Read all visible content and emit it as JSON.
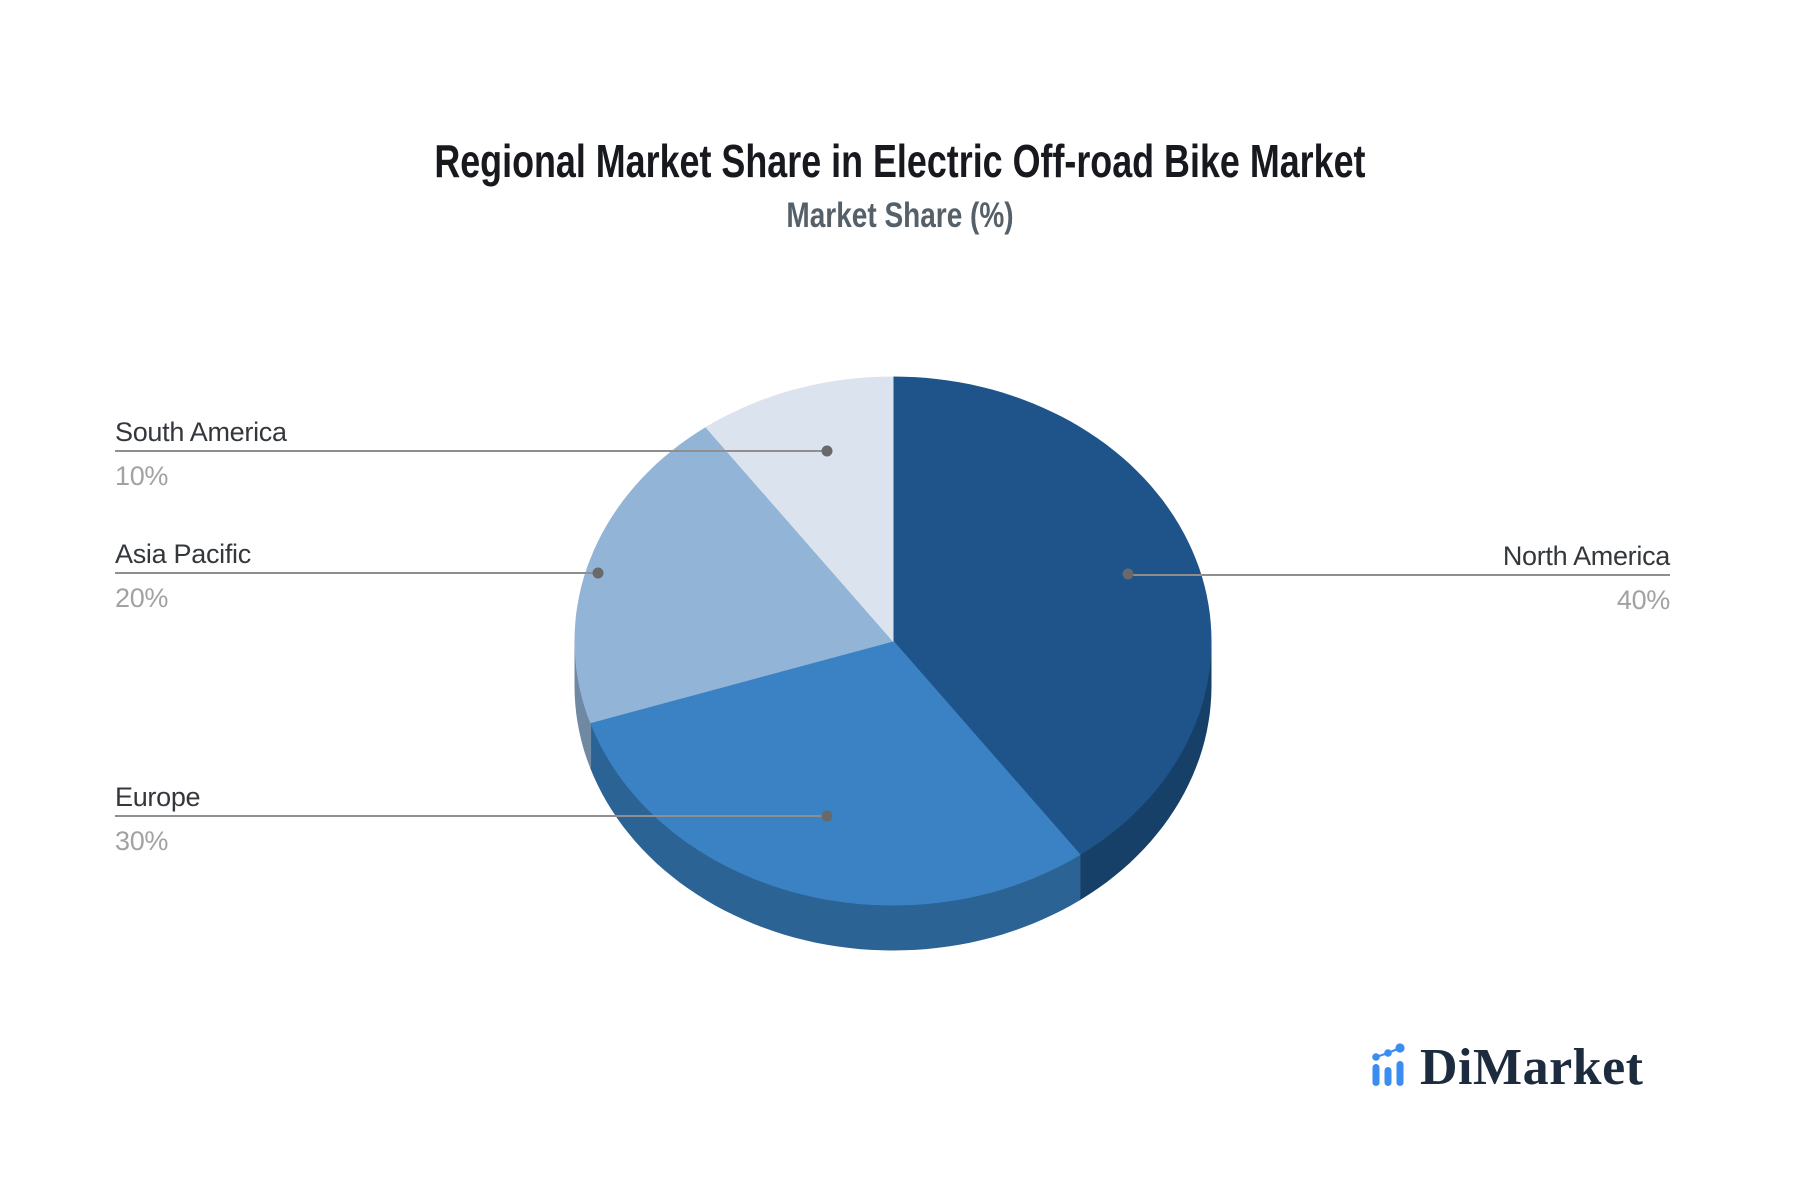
{
  "header": {
    "title": "Regional Market Share in Electric Off-road Bike Market",
    "subtitle": "Market Share (%)"
  },
  "chart_data": {
    "type": "pie",
    "style": "3d",
    "title": "Regional Market Share in Electric Off-road Bike Market",
    "subtitle": "Market Share (%)",
    "unit": "%",
    "direction": "clockwise",
    "start_angle_deg": 0,
    "slices": [
      {
        "label": "North America",
        "value": 40,
        "color": "#1e548a"
      },
      {
        "label": "Europe",
        "value": 30,
        "color": "#3a82c4"
      },
      {
        "label": "Asia Pacific",
        "value": 20,
        "color": "#92b4d6"
      },
      {
        "label": "South America",
        "value": 10,
        "color": "#dbe3ee"
      }
    ],
    "leader_line_color": "#8f8f8f",
    "leader_dot_color": "#696969",
    "label_text_color": "#34383d",
    "value_text_color": "#a2a2a2",
    "legend": "none",
    "grid": "off"
  },
  "branding": {
    "name": "DiMarket",
    "icon": "bar-chart-trend-icon",
    "icon_color": "#3b8df0",
    "text_color": "#1c2b3d"
  }
}
